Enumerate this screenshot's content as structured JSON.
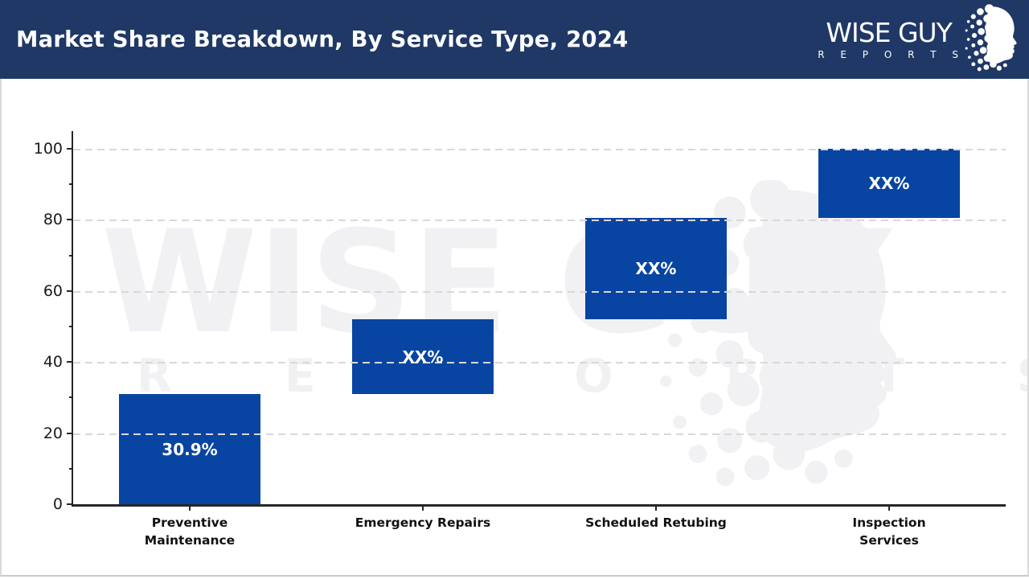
{
  "header": {
    "title": "Market Share Breakdown, By Service Type, 2024",
    "logo": {
      "wordmark": "WISE GUY",
      "subtitle": "R E P O R T S"
    }
  },
  "watermark": {
    "wordmark": "WISE GUY",
    "subtitle": "R E P O R T S"
  },
  "colors": {
    "header_bg": "#1f3866",
    "bar": "#0845a3",
    "grid": "#d8d8d8",
    "axis": "#262626",
    "watermark": "#f1f1f3",
    "bar_label_text": "#ffffff"
  },
  "chart_data": {
    "type": "bar",
    "variant": "waterfall",
    "title": "Market Share Breakdown, By Service Type, 2024",
    "xlabel": "",
    "ylabel": "",
    "categories": [
      "Preventive Maintenance",
      "Emergency Repairs",
      "Scheduled Retubing",
      "Inspection Services"
    ],
    "category_lines": [
      [
        "Preventive",
        "Maintenance"
      ],
      [
        "Emergency Repairs"
      ],
      [
        "Scheduled Retubing"
      ],
      [
        "Inspection",
        "Services"
      ]
    ],
    "segments": [
      {
        "category": "Preventive Maintenance",
        "start": 0,
        "end": 30.9,
        "value_label": "30.9%"
      },
      {
        "category": "Emergency Repairs",
        "start": 30.9,
        "end": 52,
        "value_label": "XX%"
      },
      {
        "category": "Scheduled Retubing",
        "start": 52,
        "end": 80.5,
        "value_label": "XX%"
      },
      {
        "category": "Inspection Services",
        "start": 80.5,
        "end": 100,
        "value_label": "XX%"
      }
    ],
    "values_estimated": [
      30.9,
      21.1,
      28.5,
      19.5
    ],
    "yticks": [
      0,
      20,
      40,
      60,
      80,
      100
    ],
    "yticks_minor": [
      10,
      30,
      50,
      70,
      90
    ],
    "ylim": [
      0,
      105
    ],
    "grid": "horizontal-dashed",
    "grid_over_bars": true,
    "legend": false
  }
}
